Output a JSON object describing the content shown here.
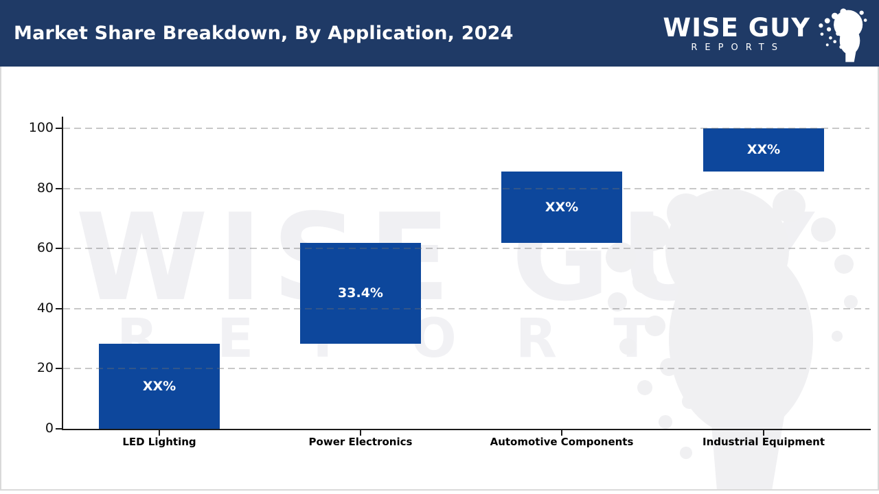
{
  "header": {
    "title": "Market Share Breakdown, By Application, 2024",
    "logo": {
      "line1": "WISE GUY",
      "line2": "REPORTS"
    },
    "bg_color": "#1f3a66"
  },
  "watermark": {
    "line1": "WISE GUY",
    "line2": "REPORTS"
  },
  "chart_data": {
    "type": "bar",
    "subtype": "waterfall",
    "title": "Market Share Breakdown, By Application, 2024",
    "categories": [
      "LED Lighting",
      "Power Electronics",
      "Automotive Components",
      "Industrial Equipment"
    ],
    "series": [
      {
        "name": "Market share (%)",
        "segments": [
          {
            "start": 0,
            "end": 28.4
          },
          {
            "start": 28.4,
            "end": 61.8
          },
          {
            "start": 61.8,
            "end": 85.7
          },
          {
            "start": 85.7,
            "end": 100
          }
        ],
        "labels": [
          "XX%",
          "33.4%",
          "XX%",
          "XX%"
        ]
      }
    ],
    "ylim": [
      0,
      100
    ],
    "yticks": [
      0,
      20,
      40,
      60,
      80,
      100
    ],
    "grid": "horizontal-dashed",
    "legend": "none",
    "bar_color": "#0d479c",
    "bar_label_color": "#ffffff",
    "axis_color": "#1a1a1a"
  }
}
